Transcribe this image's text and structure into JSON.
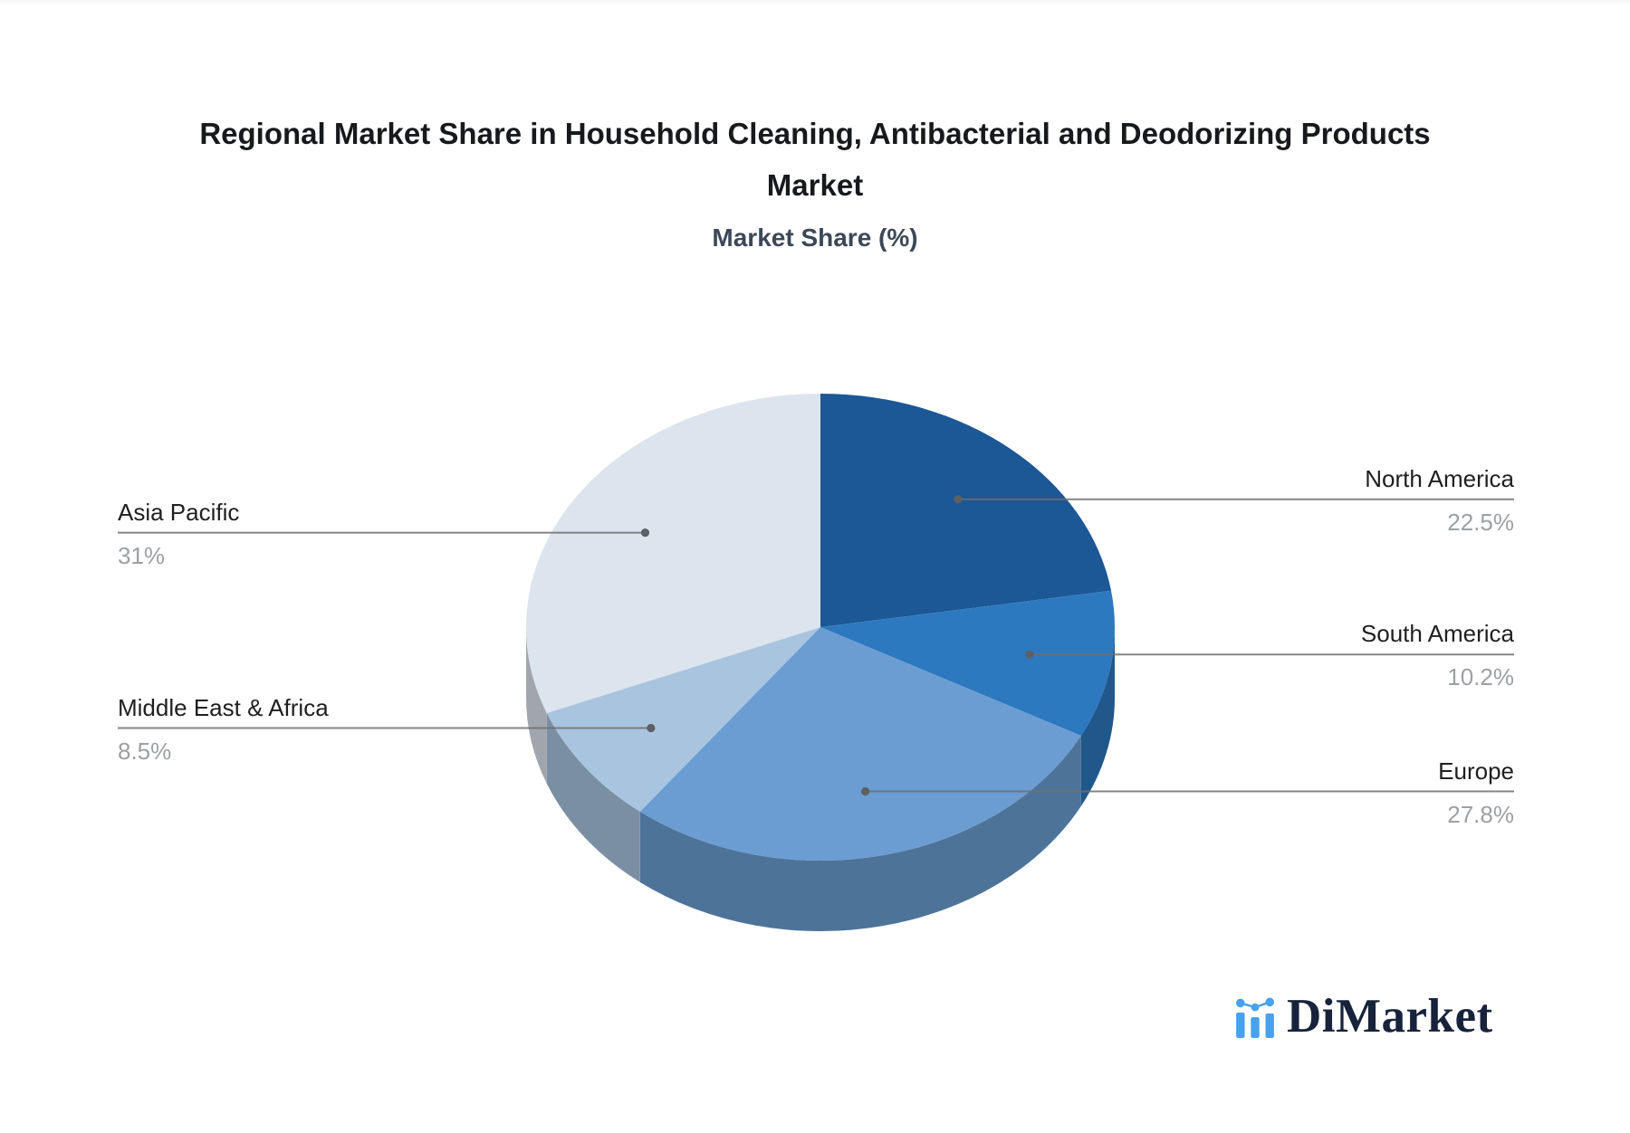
{
  "header": {
    "title_lines": [
      "Regional Market Share in Household Cleaning, Antibacterial and Deodorizing Products",
      "Market"
    ],
    "subtitle": "Market Share (%)"
  },
  "chart_data": {
    "type": "pie",
    "style": "3d",
    "title": "Regional Market Share in Household Cleaning, Antibacterial and Deodorizing Products Market",
    "subtitle": "Market Share (%)",
    "unit": "%",
    "direction": "clockwise",
    "start_angle": "12-o-clock",
    "legend_position": "none",
    "label_style": "callout-lines",
    "series": [
      {
        "name": "North America",
        "value": 22.5,
        "label": "22.5%",
        "color": "#1c5796",
        "side": "right"
      },
      {
        "name": "South America",
        "value": 10.2,
        "label": "10.2%",
        "color": "#2d79bf",
        "side": "right"
      },
      {
        "name": "Europe",
        "value": 27.8,
        "label": "27.8%",
        "color": "#6b9dd2",
        "side": "right"
      },
      {
        "name": "Middle East & Africa",
        "value": 8.5,
        "label": "8.5%",
        "color": "#a9c4df",
        "side": "left"
      },
      {
        "name": "Asia Pacific",
        "value": 31,
        "label": "31%",
        "color": "#dce4ee",
        "side": "left"
      }
    ],
    "colors": {
      "label_text": "#1f1f1f",
      "value_text": "#9da0a3",
      "leader_line": "#6f6f6f"
    }
  },
  "branding": {
    "logo_text": "DiMarket",
    "logo_text_color": "#17233b",
    "logo_icon_color": "#47a1ed",
    "logo_icon": "bar-line-chart-icon"
  }
}
